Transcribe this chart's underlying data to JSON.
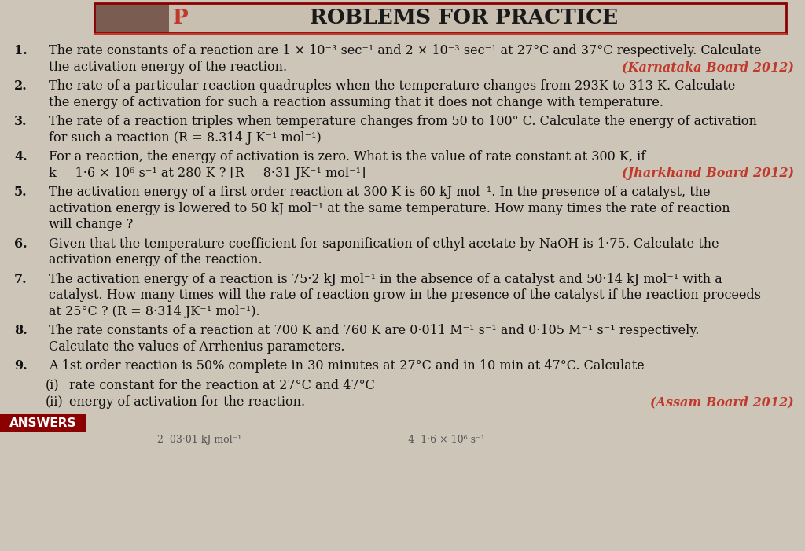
{
  "bg_color": "#cdc5b8",
  "title": "ROBLEMS FOR PRACTICE",
  "header_box_color": "#c8bfb0",
  "header_border_color": "#8B0000",
  "header_underline_color": "#c0392b",
  "icon_color": "#7a5c50",
  "title_color": "#1a1a1a",
  "p_color": "#c0392b",
  "board_color": "#c0392b",
  "answers_bg": "#8B0000",
  "answers_text": "ANSWERS",
  "text_color": "#111111",
  "num_color": "#111111",
  "problems": [
    {
      "num": "1.",
      "lines": [
        "The rate constants of a reaction are 1 × 10⁻³ sec⁻¹ and 2 × 10⁻³ sec⁻¹ at 27°C and 37°C respectively. Calculate",
        "the activation energy of the reaction."
      ],
      "board": "(Karnataka Board 2012)",
      "board_on_line": 1
    },
    {
      "num": "2.",
      "lines": [
        "The rate of a particular reaction quadruples when the temperature changes from 293K to 313 K. Calculate",
        "the energy of activation for such a reaction assuming that it does not change with temperature."
      ],
      "board": "",
      "board_on_line": -1
    },
    {
      "num": "3.",
      "lines": [
        "The rate of a reaction triples when temperature changes from 50 to 100° C. Calculate the energy of activation",
        "for such a reaction (R = 8.314 J K⁻¹ mol⁻¹)"
      ],
      "board": "",
      "board_on_line": -1
    },
    {
      "num": "4.",
      "lines": [
        "For a reaction, the energy of activation is zero. What is the value of rate constant at 300 K, if",
        "k = 1·6 × 10⁶ s⁻¹ at 280 K ? [R = 8·31 JK⁻¹ mol⁻¹]"
      ],
      "board": "(Jharkhand Board 2012)",
      "board_on_line": 1
    },
    {
      "num": "5.",
      "lines": [
        "The activation energy of a first order reaction at 300 K is 60 kJ mol⁻¹. In the presence of a catalyst, the",
        "activation energy is lowered to 50 kJ mol⁻¹ at the same temperature. How many times the rate of reaction",
        "will change ?"
      ],
      "board": "",
      "board_on_line": -1
    },
    {
      "num": "6.",
      "lines": [
        "Given that the temperature coefficient for saponification of ethyl acetate by NaOH is 1·75. Calculate the",
        "activation energy of the reaction."
      ],
      "board": "",
      "board_on_line": -1
    },
    {
      "num": "7.",
      "lines": [
        "The activation energy of a reaction is 75·2 kJ mol⁻¹ in the absence of a catalyst and 50·14 kJ mol⁻¹ with a",
        "catalyst. How many times will the rate of reaction grow in the presence of the catalyst if the reaction proceeds",
        "at 25°C ? (R = 8·314 JK⁻¹ mol⁻¹)."
      ],
      "board": "",
      "board_on_line": -1
    },
    {
      "num": "8.",
      "lines": [
        "The rate constants of a reaction at 700 K and 760 K are 0·011 M⁻¹ s⁻¹ and 0·105 M⁻¹ s⁻¹ respectively.",
        "Calculate the values of Arrhenius parameters."
      ],
      "board": "",
      "board_on_line": -1
    },
    {
      "num": "9.",
      "lines": [
        "A 1st order reaction is 50% complete in 30 minutes at 27°C and in 10 min at 47°C. Calculate"
      ],
      "board": "",
      "board_on_line": -1
    }
  ],
  "sub_items": [
    {
      "label": "(i)",
      "text": "rate constant for the reaction at 27°C and 47°C"
    },
    {
      "label": "(ii)",
      "text": "energy of activation for the reaction."
    }
  ],
  "assam_board": "(Assam Board 2012)",
  "bottom_line": "2  03·01 kJ mol⁻¹                                                     4  1·6 × 10⁶ s⁻¹"
}
